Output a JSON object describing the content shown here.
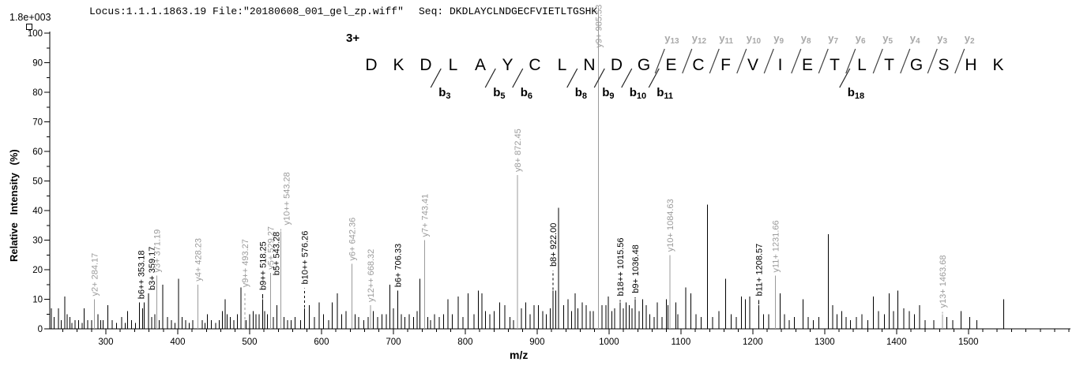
{
  "header": {
    "locus_file": "Locus:1.1.1.1863.19 File:\"20180608_001_gel_zp.wiff\"",
    "seq_label": "Seq: DKDLAYCLNDGECFVIETLTGSHK"
  },
  "sequence": {
    "charge_label": "3+",
    "peptide": "DKDLAYCLNDGECFVIETLTGSHK",
    "b_ions": [
      3,
      5,
      6,
      8,
      9,
      10,
      11,
      18
    ],
    "y_ions": [
      13,
      12,
      11,
      10,
      9,
      8,
      7,
      6,
      5,
      4,
      3,
      2
    ]
  },
  "chart_data": {
    "type": "bar",
    "subtype": "ms2-fragment-centroid-spectrum",
    "xlabel": "m/z",
    "ylabel": "Relative Intensity (%)",
    "intensity_scale_max": "1.8e+003",
    "xlim": [
      222,
      1642
    ],
    "ylim": [
      0,
      100
    ],
    "x_major_ticks": [
      300,
      400,
      500,
      600,
      700,
      800,
      900,
      1000,
      1100,
      1200,
      1300,
      1400,
      1500
    ],
    "x_minor_step": 20,
    "x_minor_min": 240,
    "x_minor_max": 1640,
    "y_major_step": 10,
    "y_minor_step": 5,
    "grid": false,
    "legend": false,
    "colors": {
      "b_series": "#000000",
      "y_series": "#9b9b9b",
      "axis": "#000000"
    },
    "annotated_peaks": [
      {
        "ion": "y2+",
        "mz": 284.17,
        "intensity": 10,
        "label": "y2+ 284.17",
        "series": "y"
      },
      {
        "ion": "b6++",
        "mz": 353.18,
        "intensity": 9,
        "label": "b6++ 353.18",
        "series": "b",
        "dx": -4
      },
      {
        "ion": "b3+",
        "mz": 359.17,
        "intensity": 12,
        "label": "b3+ 359.17",
        "series": "b",
        "dx": 4
      },
      {
        "ion": "y3+",
        "mz": 371.19,
        "intensity": 18,
        "label": "y3+ 371.19",
        "series": "y"
      },
      {
        "ion": "y4+",
        "mz": 428.23,
        "intensity": 15,
        "label": "y4+ 428.23",
        "series": "y"
      },
      {
        "ion": "y9++",
        "mz": 493.27,
        "intensity": 3,
        "label": "y9++ 493.27",
        "series": "y",
        "label_base": 13,
        "leader": "dashed"
      },
      {
        "ion": "b9++",
        "mz": 518.25,
        "intensity": 10,
        "label": "b9++ 518.25",
        "series": "b",
        "label_base": 12
      },
      {
        "ion": "y5+",
        "mz": 529.27,
        "intensity": 19,
        "label": "y5+ 529.27",
        "series": "y"
      },
      {
        "ion": "b5+",
        "mz": 543.28,
        "intensity": 33,
        "label": "b5+ 543.28",
        "series": "b",
        "dx": -6,
        "label_base": 17,
        "draw_peak": false
      },
      {
        "ion": "y10++",
        "mz": 543.28,
        "intensity": 33,
        "label": "y10++ 543.28",
        "series": "y",
        "dx": 7,
        "label_base": 34
      },
      {
        "ion": "b10++",
        "mz": 576.26,
        "intensity": 7,
        "label": "b10++ 576.26",
        "series": "b",
        "label_base": 14,
        "leader": "dashed"
      },
      {
        "ion": "y6+",
        "mz": 642.36,
        "intensity": 22,
        "label": "y6+ 642.36",
        "series": "y"
      },
      {
        "ion": "y12++",
        "mz": 668.32,
        "intensity": 8,
        "label": "y12++ 668.32",
        "series": "y"
      },
      {
        "ion": "b6+",
        "mz": 706.33,
        "intensity": 13,
        "label": "b6+ 706.33",
        "series": "b"
      },
      {
        "ion": "y7+",
        "mz": 743.41,
        "intensity": 30,
        "label": "y7+ 743.41",
        "series": "y"
      },
      {
        "ion": "y8+",
        "mz": 872.45,
        "intensity": 52,
        "label": "y8+ 872.45",
        "series": "y"
      },
      {
        "ion": "b8+",
        "mz": 922.0,
        "intensity": 13,
        "label": "b8+ 922.00",
        "series": "b",
        "label_base": 20,
        "leader": "dashed"
      },
      {
        "ion": "y9+",
        "mz": 985.53,
        "intensity": 100,
        "label": "y9+ 985.53",
        "series": "y",
        "label_base": 94,
        "extend_top": true
      },
      {
        "ion": "b18++",
        "mz": 1015.56,
        "intensity": 9,
        "label": "b18++ 1015.56",
        "series": "b",
        "label_base": 10
      },
      {
        "ion": "b9+",
        "mz": 1036.48,
        "intensity": 10,
        "label": "b9+ 1036.48",
        "series": "b",
        "label_base": 11
      },
      {
        "ion": "y10+",
        "mz": 1084.63,
        "intensity": 25,
        "label": "y10+ 1084.63",
        "series": "y"
      },
      {
        "ion": "b11+",
        "mz": 1208.57,
        "intensity": 8,
        "label": "b11+ 1208.57",
        "series": "b",
        "label_base": 10,
        "leader": "solid"
      },
      {
        "ion": "y11+",
        "mz": 1231.66,
        "intensity": 18,
        "label": "y11+ 1231.66",
        "series": "y"
      },
      {
        "ion": "y13+",
        "mz": 1463.68,
        "intensity": 5,
        "label": "y13+ 1463.68",
        "series": "y",
        "label_base": 6
      }
    ],
    "background_peaks": [
      [
        224,
        7
      ],
      [
        228,
        4
      ],
      [
        234,
        7
      ],
      [
        238,
        3
      ],
      [
        243,
        11
      ],
      [
        246,
        5
      ],
      [
        250,
        4
      ],
      [
        253,
        2
      ],
      [
        257,
        3
      ],
      [
        262,
        3
      ],
      [
        267,
        2
      ],
      [
        270,
        7
      ],
      [
        275,
        3
      ],
      [
        280,
        3
      ],
      [
        289,
        5
      ],
      [
        293,
        3
      ],
      [
        296,
        3
      ],
      [
        303,
        8
      ],
      [
        309,
        3
      ],
      [
        315,
        2
      ],
      [
        322,
        4
      ],
      [
        327,
        2
      ],
      [
        330,
        6
      ],
      [
        336,
        3
      ],
      [
        341,
        2
      ],
      [
        347,
        9
      ],
      [
        351,
        7
      ],
      [
        364,
        4
      ],
      [
        368,
        5
      ],
      [
        374,
        3
      ],
      [
        379,
        15
      ],
      [
        386,
        4
      ],
      [
        391,
        3
      ],
      [
        396,
        2
      ],
      [
        401,
        17
      ],
      [
        406,
        4
      ],
      [
        411,
        3
      ],
      [
        416,
        2
      ],
      [
        421,
        3
      ],
      [
        434,
        3
      ],
      [
        438,
        2
      ],
      [
        441,
        5
      ],
      [
        447,
        3
      ],
      [
        453,
        2
      ],
      [
        458,
        3
      ],
      [
        462,
        6
      ],
      [
        466,
        10
      ],
      [
        469,
        5
      ],
      [
        473,
        4
      ],
      [
        478,
        3
      ],
      [
        483,
        5
      ],
      [
        488,
        14
      ],
      [
        495,
        3
      ],
      [
        500,
        5
      ],
      [
        505,
        6
      ],
      [
        509,
        5
      ],
      [
        513,
        5
      ],
      [
        521,
        6
      ],
      [
        525,
        5
      ],
      [
        533,
        4
      ],
      [
        538,
        8
      ],
      [
        548,
        4
      ],
      [
        553,
        3
      ],
      [
        558,
        3
      ],
      [
        563,
        4
      ],
      [
        571,
        3
      ],
      [
        583,
        8
      ],
      [
        590,
        4
      ],
      [
        597,
        9
      ],
      [
        603,
        5
      ],
      [
        610,
        3
      ],
      [
        615,
        9
      ],
      [
        622,
        12
      ],
      [
        628,
        5
      ],
      [
        634,
        6
      ],
      [
        647,
        5
      ],
      [
        652,
        4
      ],
      [
        659,
        3
      ],
      [
        665,
        4
      ],
      [
        672,
        6
      ],
      [
        678,
        4
      ],
      [
        684,
        5
      ],
      [
        690,
        5
      ],
      [
        695,
        15
      ],
      [
        700,
        7
      ],
      [
        711,
        5
      ],
      [
        716,
        4
      ],
      [
        722,
        5
      ],
      [
        728,
        4
      ],
      [
        733,
        6
      ],
      [
        737,
        17
      ],
      [
        748,
        4
      ],
      [
        752,
        3
      ],
      [
        757,
        5
      ],
      [
        764,
        4
      ],
      [
        770,
        5
      ],
      [
        776,
        10
      ],
      [
        782,
        5
      ],
      [
        790,
        11
      ],
      [
        797,
        4
      ],
      [
        804,
        12
      ],
      [
        812,
        5
      ],
      [
        818,
        13
      ],
      [
        823,
        12
      ],
      [
        828,
        6
      ],
      [
        834,
        5
      ],
      [
        840,
        6
      ],
      [
        848,
        9
      ],
      [
        855,
        8
      ],
      [
        862,
        4
      ],
      [
        867,
        3
      ],
      [
        878,
        7
      ],
      [
        884,
        9
      ],
      [
        890,
        5
      ],
      [
        896,
        8
      ],
      [
        902,
        8
      ],
      [
        908,
        6
      ],
      [
        913,
        5
      ],
      [
        918,
        7
      ],
      [
        926,
        13
      ],
      [
        930,
        41
      ],
      [
        937,
        8
      ],
      [
        943,
        10
      ],
      [
        948,
        6
      ],
      [
        953,
        12
      ],
      [
        957,
        7
      ],
      [
        963,
        9
      ],
      [
        968,
        8
      ],
      [
        974,
        6
      ],
      [
        978,
        6
      ],
      [
        990,
        8
      ],
      [
        996,
        8
      ],
      [
        999,
        11
      ],
      [
        1004,
        6
      ],
      [
        1008,
        7
      ],
      [
        1020,
        7
      ],
      [
        1024,
        9
      ],
      [
        1028,
        8
      ],
      [
        1032,
        7
      ],
      [
        1042,
        6
      ],
      [
        1047,
        10
      ],
      [
        1052,
        8
      ],
      [
        1057,
        5
      ],
      [
        1063,
        4
      ],
      [
        1067,
        9
      ],
      [
        1074,
        4
      ],
      [
        1080,
        10
      ],
      [
        1082,
        8
      ],
      [
        1093,
        9
      ],
      [
        1096,
        5
      ],
      [
        1107,
        14
      ],
      [
        1114,
        12
      ],
      [
        1121,
        5
      ],
      [
        1128,
        4
      ],
      [
        1137,
        42
      ],
      [
        1144,
        4
      ],
      [
        1153,
        6
      ],
      [
        1162,
        17
      ],
      [
        1170,
        5
      ],
      [
        1177,
        4
      ],
      [
        1184,
        11
      ],
      [
        1190,
        10
      ],
      [
        1196,
        11
      ],
      [
        1215,
        5
      ],
      [
        1222,
        5
      ],
      [
        1238,
        12
      ],
      [
        1244,
        5
      ],
      [
        1251,
        3
      ],
      [
        1258,
        4
      ],
      [
        1270,
        10
      ],
      [
        1277,
        4
      ],
      [
        1284,
        3
      ],
      [
        1292,
        4
      ],
      [
        1305,
        32
      ],
      [
        1311,
        8
      ],
      [
        1317,
        5
      ],
      [
        1324,
        6
      ],
      [
        1330,
        4
      ],
      [
        1336,
        3
      ],
      [
        1344,
        4
      ],
      [
        1352,
        5
      ],
      [
        1360,
        3
      ],
      [
        1368,
        11
      ],
      [
        1375,
        6
      ],
      [
        1383,
        5
      ],
      [
        1390,
        12
      ],
      [
        1396,
        6
      ],
      [
        1402,
        13
      ],
      [
        1410,
        7
      ],
      [
        1418,
        6
      ],
      [
        1425,
        5
      ],
      [
        1432,
        8
      ],
      [
        1440,
        3
      ],
      [
        1452,
        3
      ],
      [
        1470,
        4
      ],
      [
        1478,
        3
      ],
      [
        1490,
        6
      ],
      [
        1502,
        4
      ],
      [
        1512,
        3
      ],
      [
        1549,
        10
      ]
    ]
  }
}
